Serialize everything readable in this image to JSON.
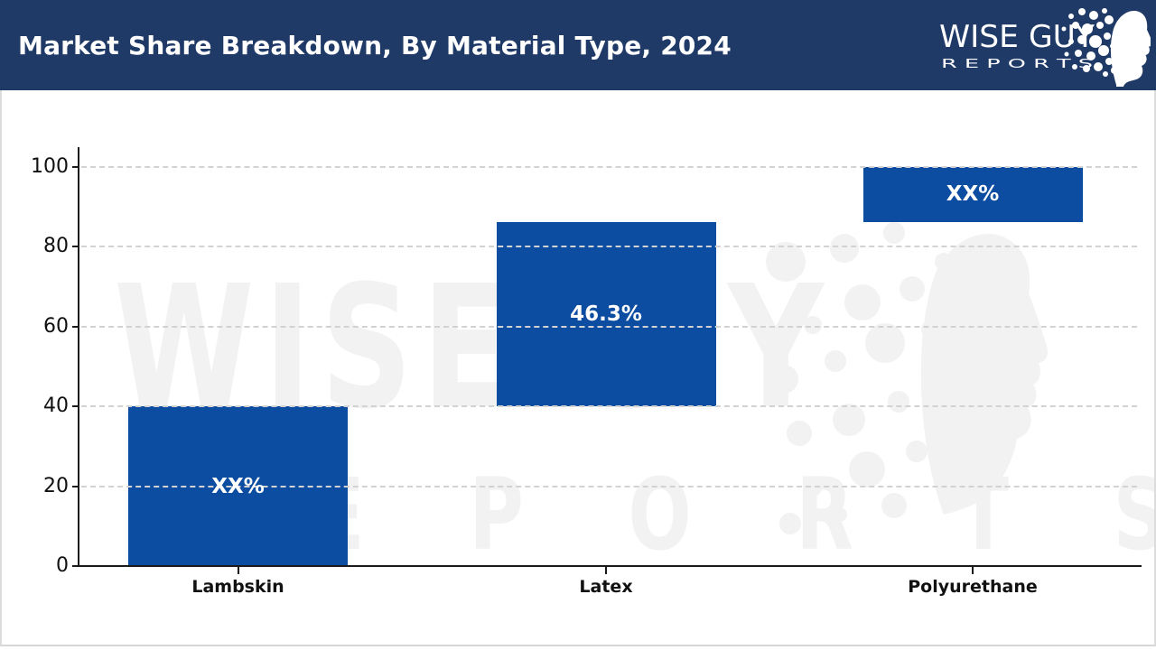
{
  "header": {
    "title": "Market Share Breakdown, By Material Type, 2024",
    "bg_color": "#203a68",
    "logo": {
      "brand_line1": "WISE GUY",
      "brand_line2": "R E P O R T S"
    }
  },
  "watermark": {
    "line1": "WISE G",
    "line1_suffix": "Y",
    "line2": "R E P O R T S"
  },
  "chart_data": {
    "type": "bar",
    "subtype": "floating-waterfall",
    "title": "Market Share Breakdown, By Material Type, 2024",
    "categories": [
      "Lambskin",
      "Latex",
      "Polyurethane"
    ],
    "series": [
      {
        "name": "Market share (%)",
        "segments": [
          {
            "category": "Lambskin",
            "from": 0,
            "to": 40,
            "label": "XX%"
          },
          {
            "category": "Latex",
            "from": 40,
            "to": 86.3,
            "label": "46.3%"
          },
          {
            "category": "Polyurethane",
            "from": 86.3,
            "to": 100,
            "label": "XX%"
          }
        ]
      }
    ],
    "xlabel": "",
    "ylabel": "",
    "ylim": [
      0,
      100
    ],
    "yticks": [
      0,
      20,
      40,
      60,
      80,
      100
    ],
    "grid": {
      "horizontal": true,
      "style": "dashed",
      "color": "#d2d2d2"
    },
    "legend": "none",
    "bar_color": "#0c4da1",
    "bar_label_color": "#ffffff",
    "axis_color": "#1a1a1a"
  }
}
